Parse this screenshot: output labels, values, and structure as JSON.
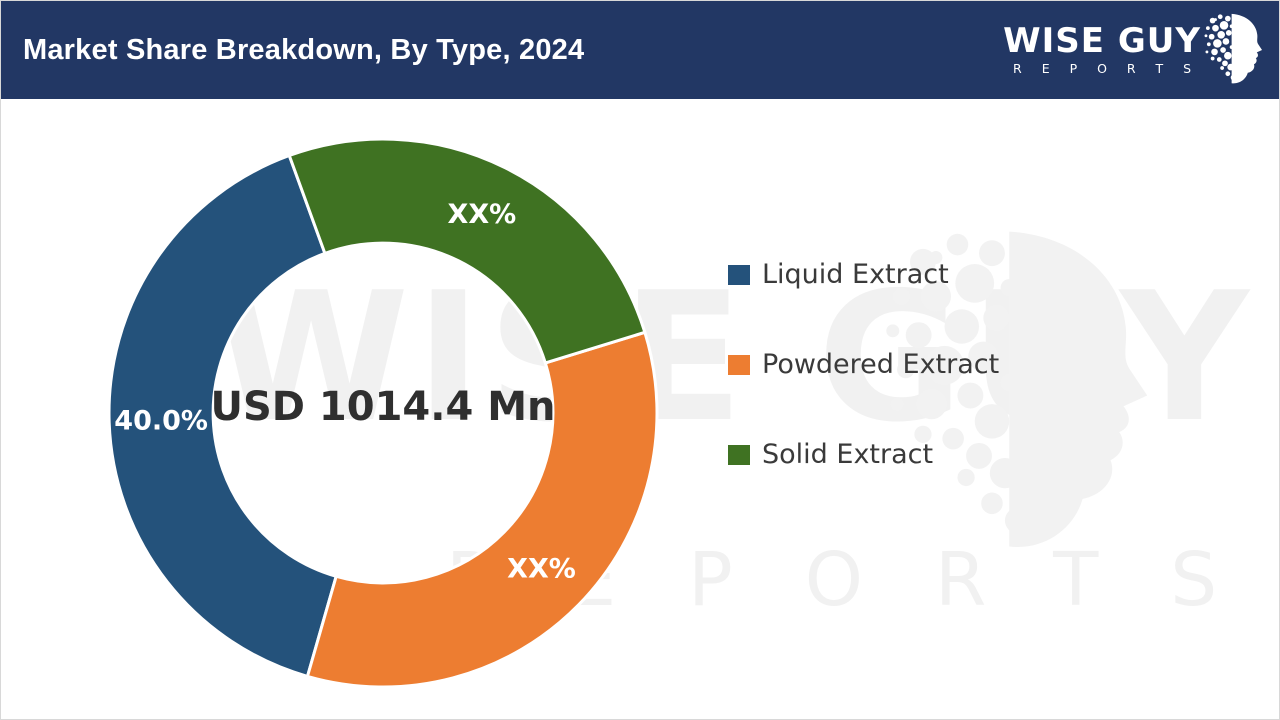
{
  "header": {
    "title": "Market Share Breakdown, By Type, 2024",
    "background_color": "#223764",
    "logo": {
      "line1": "WISE GUY",
      "line2": "R E P O R T S"
    }
  },
  "watermark": {
    "line1": "WISE GUY",
    "line2": "REPORTS"
  },
  "chart_data": {
    "type": "pie",
    "variant": "donut",
    "title": "Market Share Breakdown, By Type, 2024",
    "center_label": "USD 1014.4 Mn",
    "start_angle_deg": 110,
    "direction": "counterclockwise",
    "inner_radius_ratio": 0.62,
    "legend_position": "right",
    "slices": [
      {
        "name": "Liquid Extract",
        "label": "40.0%",
        "value": 40.0,
        "color": "#24527b"
      },
      {
        "name": "Powdered Extract",
        "label": "XX%",
        "value": 34.2,
        "color": "#ed7d31",
        "note": "printed label masked as XX%; 34.2 estimated from arc"
      },
      {
        "name": "Solid Extract",
        "label": "XX%",
        "value": 25.8,
        "color": "#3f7222",
        "note": "printed label masked as XX%; 25.8 estimated from arc"
      }
    ]
  },
  "legend": {
    "items": [
      {
        "label": "Liquid Extract",
        "color": "#24527b"
      },
      {
        "label": "Powdered Extract",
        "color": "#ed7d31"
      },
      {
        "label": "Solid Extract",
        "color": "#3f7222"
      }
    ]
  }
}
